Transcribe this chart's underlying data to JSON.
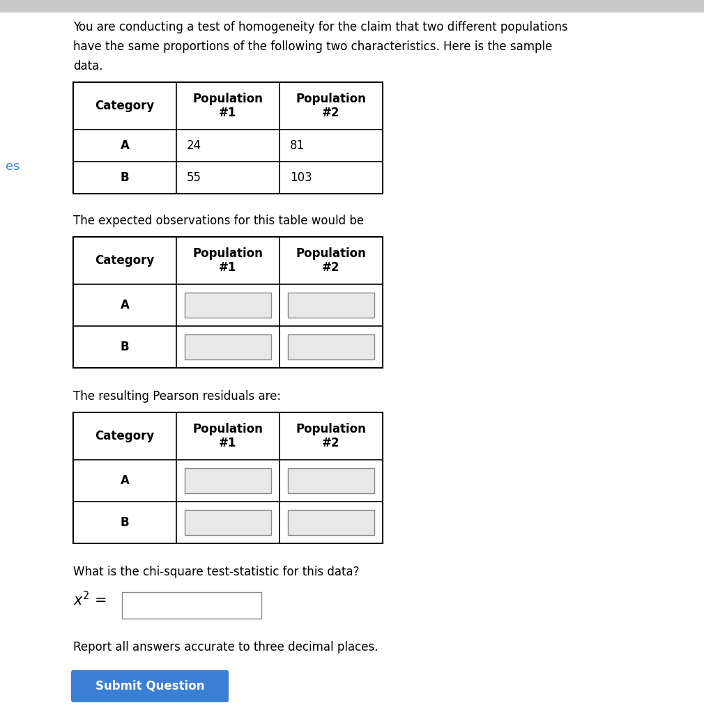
{
  "bg_color": "#f0f0f0",
  "page_bg": "#ffffff",
  "intro_text_lines": [
    "You are conducting a test of homogeneity for the claim that two different populations",
    "have the same proportions of the following two characteristics. Here is the sample",
    "data."
  ],
  "left_margin_text": "es",
  "table1_headers": [
    "Category",
    "Population\n#1",
    "Population\n#2"
  ],
  "table1_data": [
    [
      "A",
      "24",
      "81"
    ],
    [
      "B",
      "55",
      "103"
    ]
  ],
  "table2_label": "The expected observations for this table would be",
  "table2_headers": [
    "Category",
    "Population\n#1",
    "Population\n#2"
  ],
  "table3_label": "The resulting Pearson residuals are:",
  "table3_headers": [
    "Category",
    "Population\n#1",
    "Population\n#2"
  ],
  "chi_sq_label": "What is the chi-square test-statistic for this data?",
  "final_note": "Report all answers accurate to three decimal places.",
  "button_text": "Submit Question",
  "button_color": "#3a7fd5",
  "button_text_color": "#ffffff",
  "font_color": "#000000",
  "table_border_color": "#000000",
  "input_box_color": "#e8e8e8",
  "input_box_border": "#888888",
  "header_font_size": 12,
  "body_font_size": 12
}
